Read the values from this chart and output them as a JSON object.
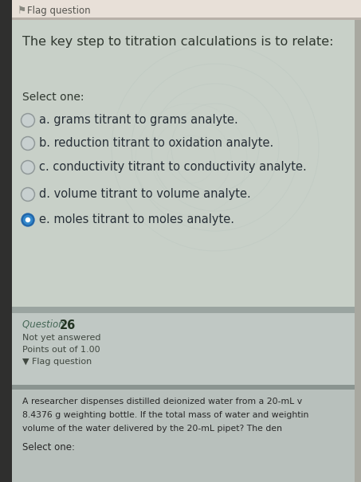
{
  "figsize": [
    4.53,
    6.05
  ],
  "dpi": 100,
  "bg_color": "#a8a8a0",
  "header_bg": "#e8e0d8",
  "header_text": "Flag question",
  "header_text_color": "#555550",
  "header_icon_color": "#888880",
  "card1_bg": "#c8d0c8",
  "card2_bg": "#c0c8c4",
  "card3_bg": "#b8c0bc",
  "separator_color": "#b0b8b4",
  "question_text": "The key step to titration calculations is to relate:",
  "question_color": "#303830",
  "select_one": "Select one:",
  "select_color": "#303830",
  "options": [
    "a. grams titrant to grams analyte.",
    "b. reduction titrant to oxidation analyte.",
    "c. conductivity titrant to conductivity analyte.",
    "d. volume titrant to volume analyte.",
    "e. moles titrant to moles analyte."
  ],
  "option_color": "#283038",
  "selected_option": 4,
  "radio_border_color": "#909898",
  "radio_fill_color": "#c8d0d0",
  "radio_selected_outer": "#2266aa",
  "radio_selected_inner": "#3388cc",
  "radio_selected_dot": "#ffffff",
  "q26_label": "Question ",
  "q26_num": "26",
  "q26_label_color": "#446655",
  "q26_num_color": "#223322",
  "q26_status": "Not yet answered",
  "q26_points": "Points out of 1.00",
  "q26_flag": "▼ Flag question",
  "q26_small_color": "#404840",
  "q27_line1": "A researcher dispenses distilled deionized water from a 20-mL v",
  "q27_line2": "8.4376 g weighting bottle. If the total mass of water and weightin",
  "q27_line3": "volume of the water delivered by the 20-mL pipet? The den",
  "q27_select": "Select one:",
  "q27_text_color": "#282828"
}
